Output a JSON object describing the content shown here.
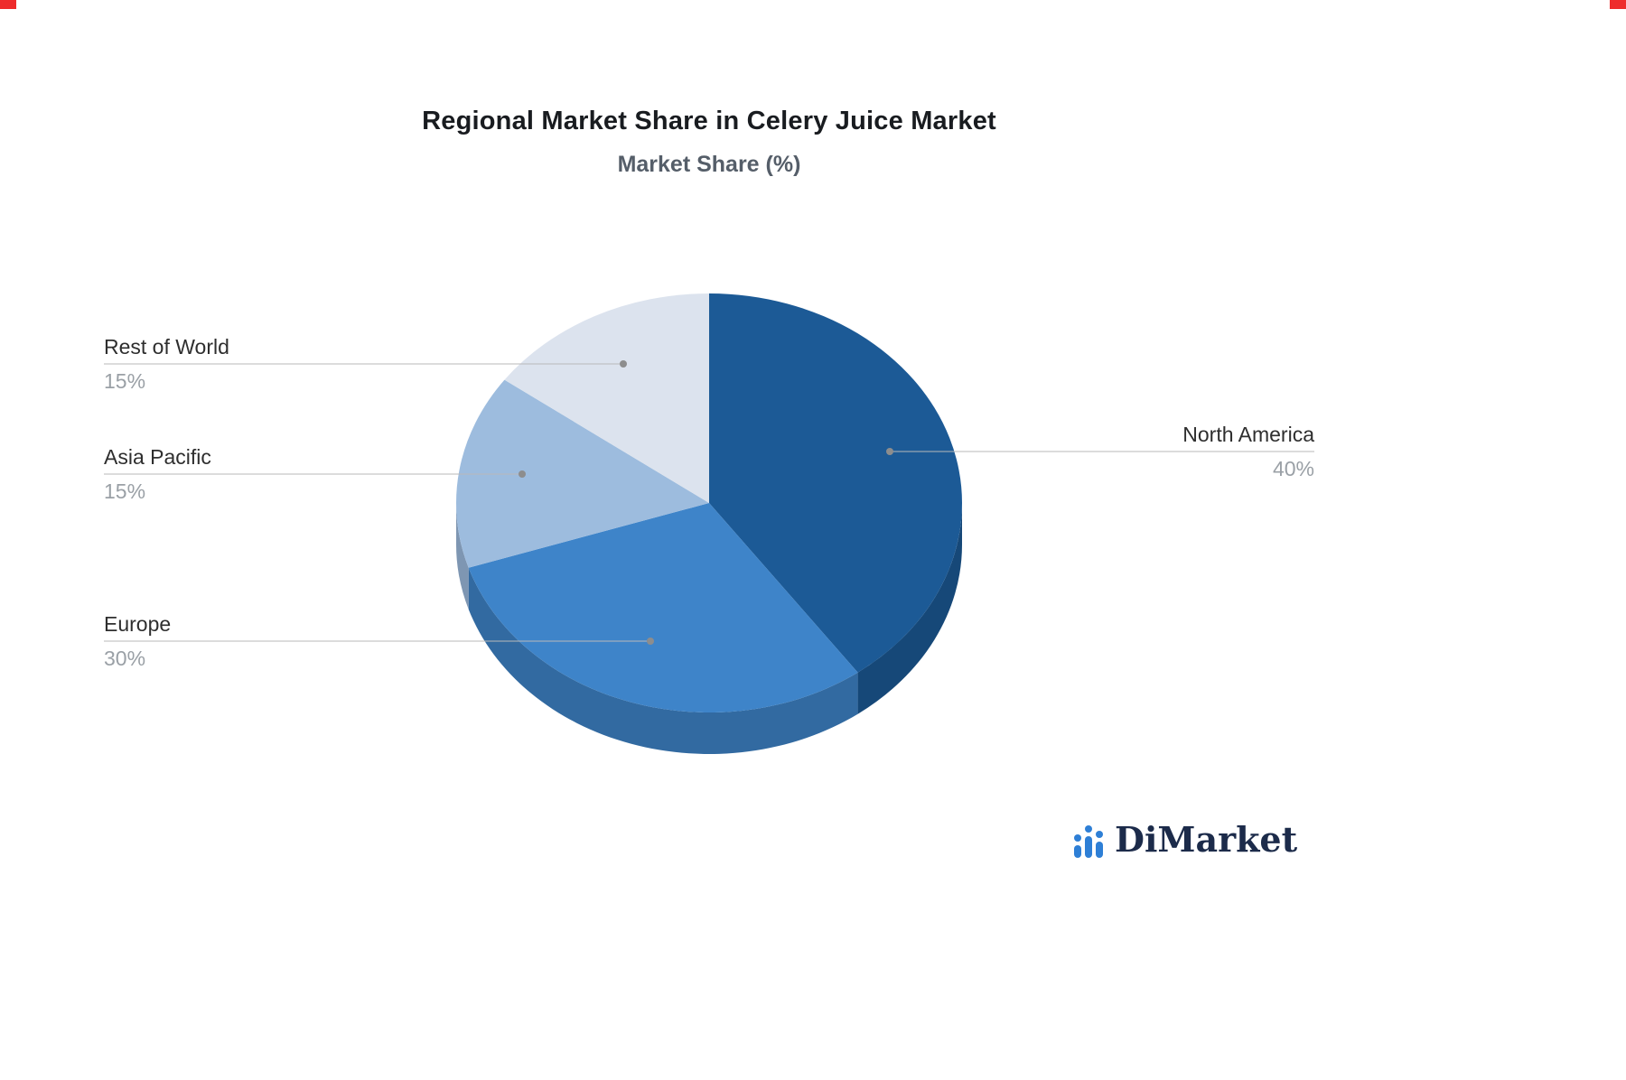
{
  "chart_data": {
    "type": "pie",
    "style": "3d",
    "title": "Regional Market Share in Celery Juice Market",
    "subtitle": "Market Share (%)",
    "unit": "%",
    "labels": [
      "North America",
      "Europe",
      "Asia Pacific",
      "Rest of World"
    ],
    "values": [
      40,
      30,
      15,
      15
    ],
    "display_values": [
      "40%",
      "30%",
      "15%",
      "15%"
    ],
    "colors": [
      "#1C5A96",
      "#3E84C9",
      "#9DBCDE",
      "#DCE3EE"
    ],
    "legend": "none",
    "label_style": "outside-with-leader-lines"
  },
  "branding": {
    "logo_text": "DiMarket",
    "logo_icon": "bar-chart-icon",
    "logo_color": "#2E7FD6",
    "logo_text_color": "#1c2b4a"
  }
}
